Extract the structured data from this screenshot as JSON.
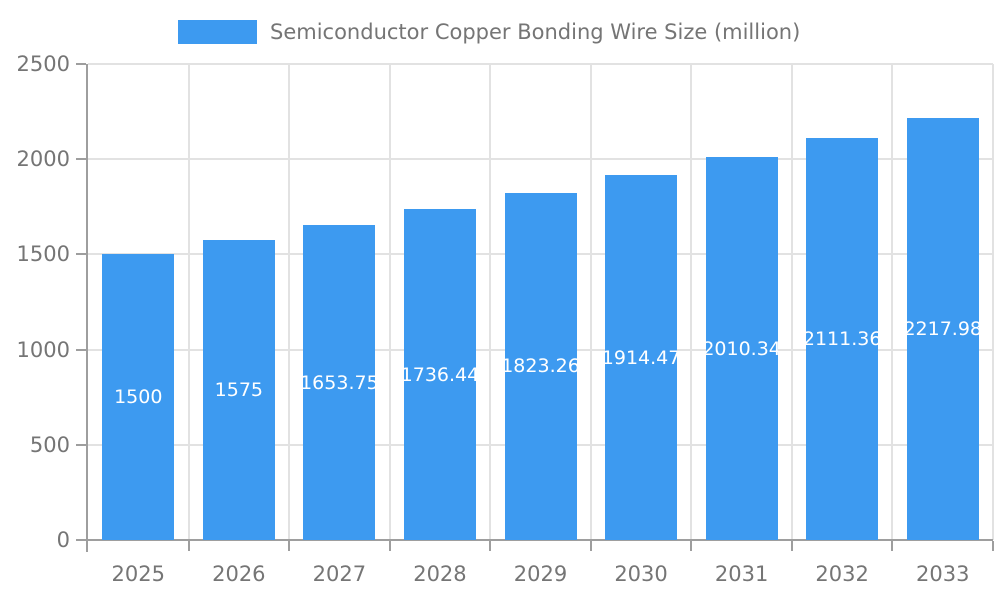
{
  "chart_data": {
    "type": "bar",
    "title": "Semiconductor Copper Bonding Wire Size (million)",
    "legend_position": "top",
    "categories": [
      "2025",
      "2026",
      "2027",
      "2028",
      "2029",
      "2030",
      "2031",
      "2032",
      "2033"
    ],
    "series": [
      {
        "name": "Semiconductor Copper Bonding Wire Size (million)",
        "values": [
          1500,
          1575,
          1653.75,
          1736.44,
          1823.26,
          1914.47,
          2010.34,
          2111.36,
          2217.98
        ],
        "value_labels": [
          "1500",
          "1575",
          "1653.75",
          "1736.44",
          "1823.26",
          "1914.47",
          "2010.34",
          "2111.36",
          "2217.98"
        ]
      }
    ],
    "xlabel": "",
    "ylabel": "",
    "ylim": [
      0,
      2500
    ],
    "yticks": [
      0,
      500,
      1000,
      1500,
      2000,
      2500
    ],
    "grid": true,
    "colors": {
      "bar": "#3d9af0",
      "grid": "#e2e2e2",
      "axis": "#9e9e9e",
      "tick_text": "#757575",
      "value_label_text": "#ffffff",
      "background": "#ffffff"
    }
  }
}
